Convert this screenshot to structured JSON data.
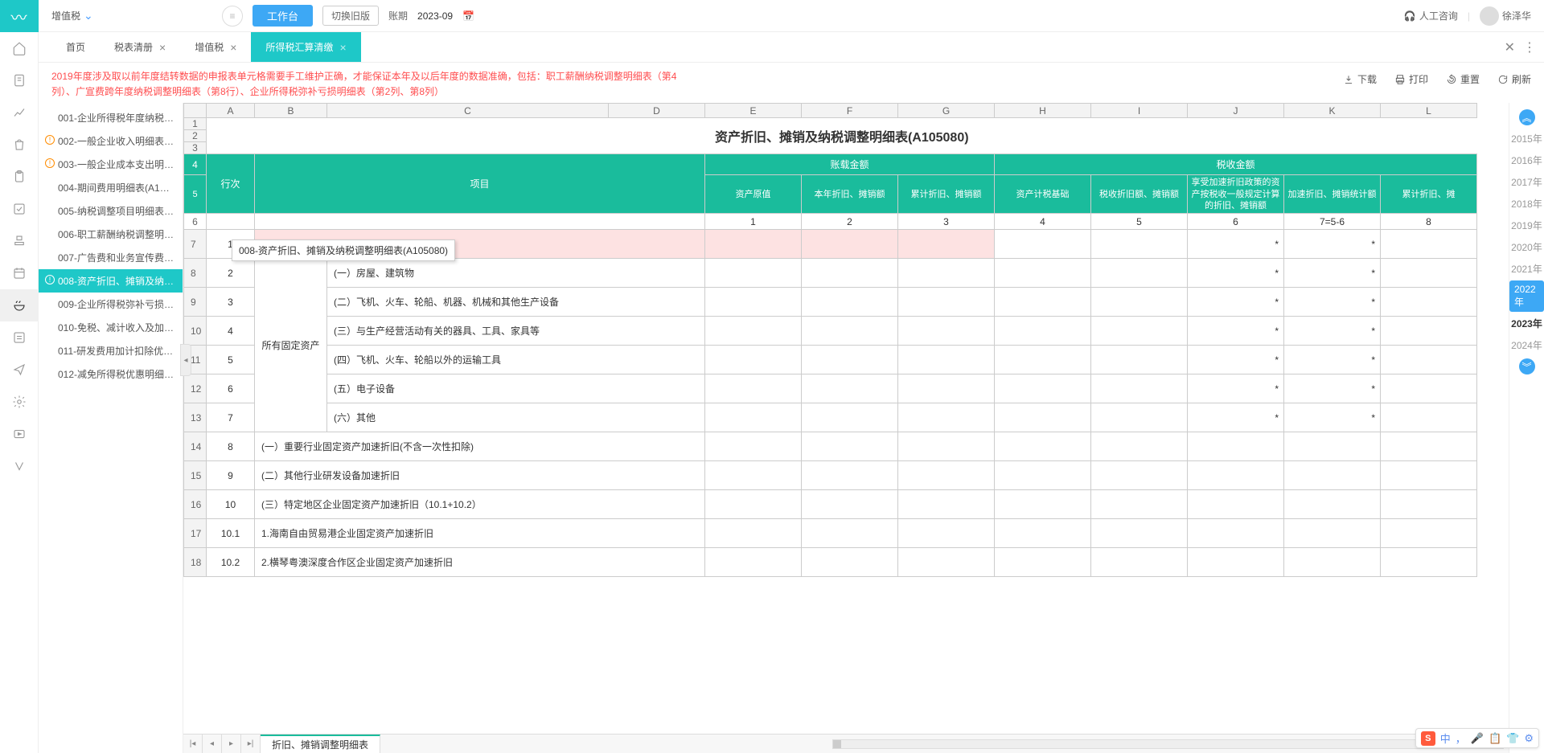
{
  "topbar": {
    "company": "增值税",
    "workbench": "工作台",
    "switch_old": "切换旧版",
    "period_label": "账期",
    "period_value": "2023-09",
    "consult": "人工咨询",
    "user": "徐泽华"
  },
  "tabs": [
    {
      "label": "首页",
      "closable": false,
      "active": false
    },
    {
      "label": "税表清册",
      "closable": true,
      "active": false
    },
    {
      "label": "增值税",
      "closable": true,
      "active": false
    },
    {
      "label": "所得税汇算清缴",
      "closable": true,
      "active": true
    }
  ],
  "notice": "2019年度涉及取以前年度结转数据的申报表单元格需要手工维护正确，才能保证本年及以后年度的数据准确，包括：职工薪酬纳税调整明细表（第4列）、广宣费跨年度纳税调整明细表（第8行）、企业所得税弥补亏损明细表（第2列、第8列）",
  "actions": {
    "download": "下载",
    "print": "打印",
    "reset": "重置",
    "refresh": "刷新"
  },
  "tree": [
    {
      "label": "001-企业所得税年度纳税申...",
      "warn": false
    },
    {
      "label": "002-一般企业收入明细表(A1...",
      "warn": true
    },
    {
      "label": "003-一般企业成本支出明细...",
      "warn": true
    },
    {
      "label": "004-期间费用明细表(A1040...",
      "warn": false
    },
    {
      "label": "005-纳税调整项目明细表(A1...",
      "warn": false
    },
    {
      "label": "006-职工薪酬纳税调整明细...",
      "warn": false
    },
    {
      "label": "007-广告费和业务宣传费跨...",
      "warn": false
    },
    {
      "label": "008-资产折旧、摊销及纳税...",
      "warn": true,
      "sel": true
    },
    {
      "label": "009-企业所得税弥补亏损明...",
      "warn": false
    },
    {
      "label": "010-免税、减计收入及加计...",
      "warn": false
    },
    {
      "label": "011-研发费用加计扣除优惠...",
      "warn": false
    },
    {
      "label": "012-减免所得税优惠明细表(...",
      "warn": false
    }
  ],
  "tooltip": "008-资产折旧、摊销及纳税调整明细表(A105080)",
  "sheet": {
    "title": "资产折旧、摊销及纳税调整明细表(A105080)",
    "col_letters": [
      "A",
      "B",
      "C",
      "D",
      "E",
      "F",
      "G",
      "H",
      "I",
      "J",
      "K",
      "L"
    ],
    "header_row1": {
      "rownum": "行次",
      "item": "项目",
      "book": "账载金额",
      "tax": "税收金额"
    },
    "header_row2": {
      "c1": "资产原值",
      "c2": "本年折旧、摊销额",
      "c3": "累计折旧、摊销额",
      "c4": "资产计税基础",
      "c5": "税收折旧额、摊销额",
      "c6": "享受加速折旧政策的资产按税收一般规定计算的折旧、摊销额",
      "c7": "加速折旧、摊销统计额",
      "c8": "累计折旧、摊"
    },
    "num_row": [
      "1",
      "2",
      "3",
      "4",
      "5",
      "6",
      "7=5-6",
      "8"
    ],
    "rows": [
      {
        "n": "7",
        "r": "1",
        "item": "",
        "cat": "",
        "pink": true
      },
      {
        "n": "8",
        "r": "2",
        "item": "(一）房屋、建筑物",
        "cat": "所有固定资产"
      },
      {
        "n": "9",
        "r": "3",
        "item": "(二）飞机、火车、轮船、机器、机械和其他生产设备"
      },
      {
        "n": "10",
        "r": "4",
        "item": "(三）与生产经营活动有关的器具、工具、家具等"
      },
      {
        "n": "11",
        "r": "5",
        "item": "(四）飞机、火车、轮船以外的运输工具"
      },
      {
        "n": "12",
        "r": "6",
        "item": "(五）电子设备"
      },
      {
        "n": "13",
        "r": "7",
        "item": "(六）其他"
      },
      {
        "n": "14",
        "r": "8",
        "item": "(一）重要行业固定资产加速折旧(不含一次性扣除)"
      },
      {
        "n": "15",
        "r": "9",
        "item": "(二）其他行业研发设备加速折旧"
      },
      {
        "n": "16",
        "r": "10",
        "item": "(三）特定地区企业固定资产加速折旧（10.1+10.2）"
      },
      {
        "n": "17",
        "r": "10.1",
        "item": "1.海南自由贸易港企业固定资产加速折旧"
      },
      {
        "n": "18",
        "r": "10.2",
        "item": "2.横琴粤澳深度合作区企业固定资产加速折旧"
      }
    ],
    "bottom_tab": "折旧、摊销调整明细表"
  },
  "years": {
    "list": [
      "2015年",
      "2016年",
      "2017年",
      "2018年",
      "2019年",
      "2020年",
      "2021年",
      "2022年",
      "2023年",
      "2024年"
    ],
    "current": "2022年",
    "bold": "2023年"
  },
  "ime": {
    "logo": "S",
    "items": [
      "中",
      "，",
      "🎤",
      "📋",
      "👕",
      "⚙"
    ]
  }
}
